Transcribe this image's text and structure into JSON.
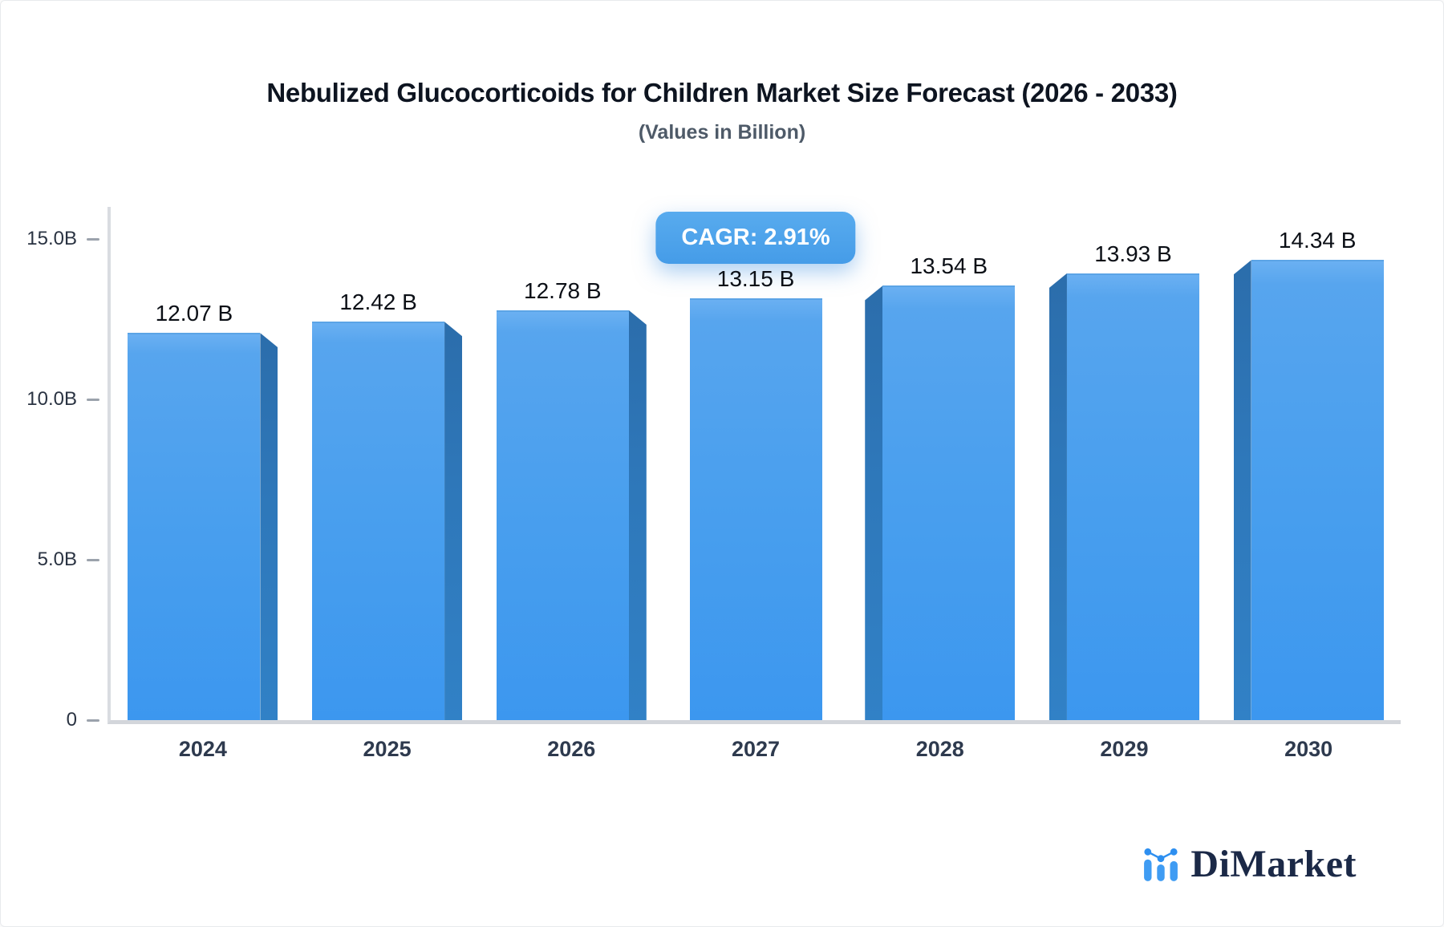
{
  "header": {
    "title": "Nebulized Glucocorticoids for Children Market Size Forecast (2026 - 2033)",
    "subtitle": "(Values in Billion)"
  },
  "cagr_badge": "CAGR: 2.91%",
  "chart_data": {
    "type": "bar",
    "title": "Nebulized Glucocorticoids for Children Market Size Forecast (2026 - 2033)",
    "subtitle": "(Values in Billion)",
    "unit": "Billion",
    "categories": [
      "2024",
      "2025",
      "2026",
      "2027",
      "2028",
      "2029",
      "2030"
    ],
    "values": [
      12.07,
      12.42,
      12.78,
      13.15,
      13.54,
      13.93,
      14.34
    ],
    "bar_labels": [
      "12.07 B",
      "12.42 B",
      "12.78 B",
      "13.15 B",
      "13.54 B",
      "13.93 B",
      "14.34 B"
    ],
    "xlabel": "",
    "ylabel": "",
    "ylim": [
      0,
      15
    ],
    "y_ticks": [
      {
        "label": "15.0B",
        "value": 15
      },
      {
        "label": "10.0B",
        "value": 10
      },
      {
        "label": "5.0B",
        "value": 5
      },
      {
        "label": "0",
        "value": 0
      }
    ],
    "grid": false,
    "legend": false,
    "annotations": [
      {
        "text": "CAGR: 2.91%",
        "position": "above 2027 bar"
      }
    ],
    "colors": {
      "bar_front_top": "#57a5ee",
      "bar_front_bottom": "#3c97ef",
      "bar_side": "#2e77b9",
      "badge_background": "#459ce8",
      "badge_text": "#ffffff",
      "axis_line": "#d9dce1"
    }
  },
  "branding": {
    "logo_text": "DiMarket",
    "logo_icon": "bar-chart-with-trend-dots-icon",
    "logo_icon_color": "#3f9cf3",
    "logo_text_color": "#1b2947"
  }
}
